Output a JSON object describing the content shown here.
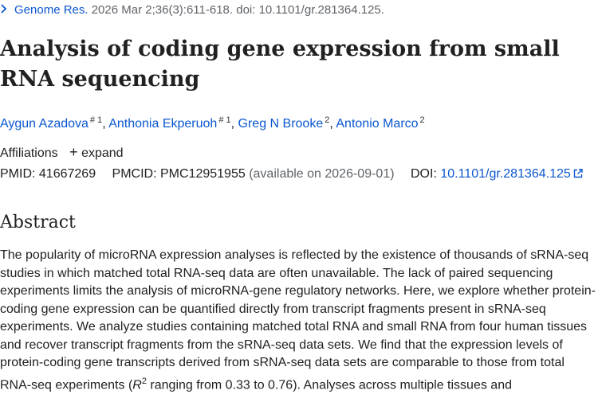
{
  "citation": {
    "journal": "Genome Res.",
    "details": "2026 Mar 2;36(3):611-618. doi: 10.1101/gr.281364.125."
  },
  "title": "Analysis of coding gene expression from small RNA sequencing",
  "authors": [
    {
      "name": "Aygun Azadova",
      "sup": "# 1"
    },
    {
      "name": "Anthonia Ekperuoh",
      "sup": "# 1"
    },
    {
      "name": "Greg N Brooke",
      "sup": "2"
    },
    {
      "name": "Antonio Marco",
      "sup": "2"
    }
  ],
  "affiliations": {
    "label": "Affiliations",
    "expand_label": "expand"
  },
  "ids": {
    "pmid_label": "PMID:",
    "pmid": "41667269",
    "pmcid_label": "PMCID:",
    "pmcid": "PMC12951955",
    "availability": "(available on 2026-09-01)",
    "doi_label": "DOI:",
    "doi": "10.1101/gr.281364.125"
  },
  "abstract": {
    "heading": "Abstract",
    "text_before_sup": "The popularity of microRNA expression analyses is reflected by the existence of thousands of sRNA-seq studies in which matched total RNA-seq data are often unavailable. The lack of paired sequencing experiments limits the analysis of microRNA-gene regulatory networks. Here, we explore whether protein-coding gene expression can be quantified directly from transcript fragments present in sRNA-seq experiments. We analyze studies containing matched total RNA and small RNA from four human tissues and recover transcript fragments from the sRNA-seq data sets. We find that the expression levels of protein-coding gene transcripts derived from sRNA-seq data sets are comparable to those from total RNA-seq experiments (",
    "r_symbol": "R",
    "r_sup": "2",
    "text_after_sup": " ranging from 0.33 to 0.76). Analyses across multiple tissues and"
  }
}
